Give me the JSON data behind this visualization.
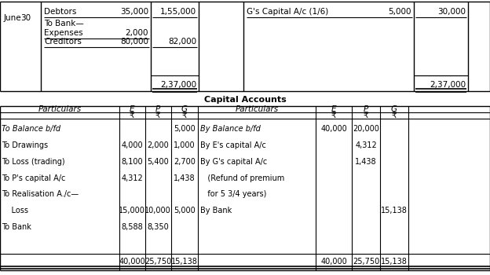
{
  "bg_color": "#ffffff",
  "title": "Capital Accounts",
  "top": {
    "date": "June  30",
    "left_rows": [
      {
        "label": "Debtors",
        "sub": "35,000",
        "total": "1,55,000"
      },
      {
        "label": "To Bank—",
        "sub": "",
        "total": ""
      },
      {
        "label": "Expenses",
        "sub": "2,000",
        "total": ""
      },
      {
        "label": "Creditors",
        "sub": "80,000",
        "total": "82,000"
      },
      {
        "label": "",
        "sub": "",
        "total": "2,37,000"
      }
    ],
    "right_rows": [
      {
        "label": "G's Capital A/c (1/6)",
        "sub": "5,000",
        "total": "30,000"
      },
      {
        "label": "",
        "sub": "",
        "total": ""
      },
      {
        "label": "",
        "sub": "",
        "total": ""
      },
      {
        "label": "",
        "sub": "",
        "total": ""
      },
      {
        "label": "",
        "sub": "",
        "total": "2,37,000"
      }
    ]
  },
  "cap": {
    "header": [
      "Particulars",
      "E",
      "P",
      "G",
      "Particulars",
      "E",
      "P",
      "G"
    ],
    "subheader": [
      "",
      "₹",
      "₹",
      "₹",
      "",
      "₹",
      "₹",
      "₹"
    ],
    "lrows": [
      [
        "To Balance b/fd",
        "",
        "",
        "5,000"
      ],
      [
        "To Drawings",
        "4,000",
        "2,000",
        "1,000"
      ],
      [
        "To Loss (trading)",
        "8,100",
        "5,400",
        "2,700"
      ],
      [
        "To P's capital A/c",
        "4,312",
        "",
        "1,438"
      ],
      [
        "To Realisation A./c—",
        "",
        "",
        ""
      ],
      [
        "    Loss",
        "15,000",
        "10,000",
        "5,000"
      ],
      [
        "To Bank",
        "8,588",
        "8,350",
        ""
      ]
    ],
    "rrows": [
      [
        "By Balance b/fd",
        "40,000",
        "20,000",
        ""
      ],
      [
        "By E's capital A/c",
        "",
        "4,312",
        ""
      ],
      [
        "By G's capital A/c",
        "",
        "1,438",
        ""
      ],
      [
        "   (Refund of premium",
        "",
        "",
        ""
      ],
      [
        "   for 5 3/4 years)",
        "",
        "",
        ""
      ],
      [
        "By Bank",
        "",
        "",
        "15,138"
      ],
      [
        "",
        "",
        "",
        ""
      ]
    ],
    "totals": [
      "40,000",
      "25,750",
      "15,138",
      "40,000",
      "25,750",
      "15,138"
    ]
  }
}
